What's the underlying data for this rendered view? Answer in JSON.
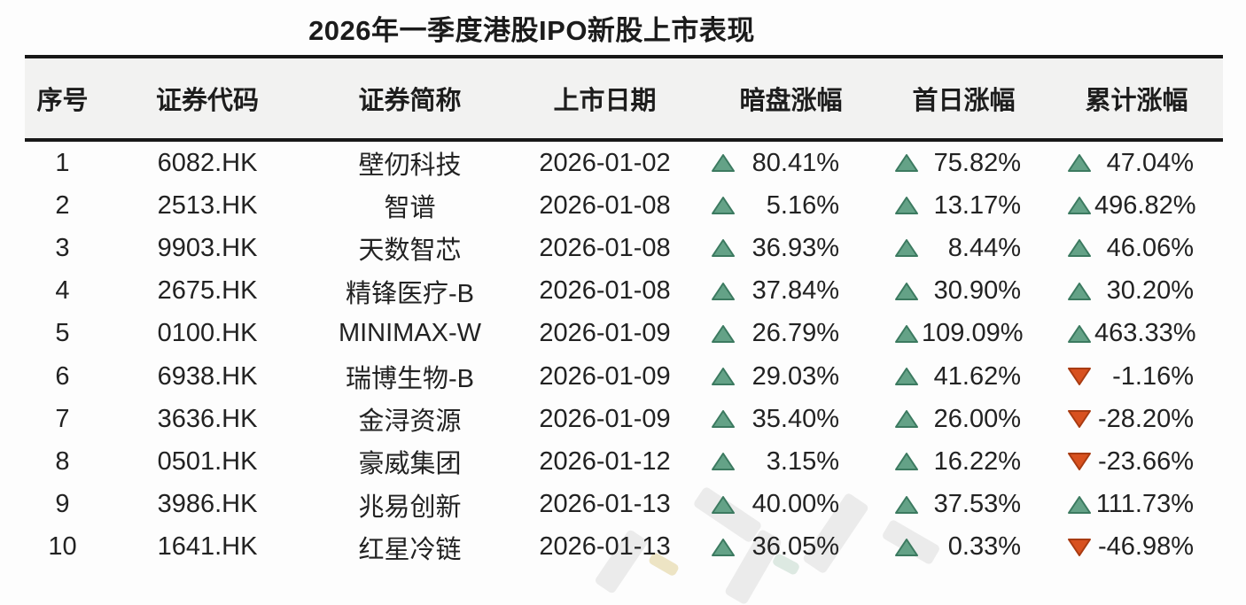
{
  "page_title": "2026年一季度港股IPO新股上市表现",
  "colors": {
    "up_fill": "#64a287",
    "up_stroke": "#3c7a60",
    "down_fill": "#d8511f",
    "down_stroke": "#a83b12",
    "header_bg": "#f2f2f1",
    "rule_line": "#181818",
    "text": "#202020"
  },
  "icons": {
    "up": "triangle-up-icon",
    "down": "triangle-down-icon"
  },
  "chart_data": {
    "type": "table",
    "title": "2026年一季度港股IPO新股上市表现",
    "columns": [
      "序号",
      "证券代码",
      "证券简称",
      "上市日期",
      "暗盘涨幅",
      "首日涨幅",
      "累计涨幅"
    ],
    "rows": [
      [
        "1",
        "6082.HK",
        "壁仞科技",
        "2026-01-02",
        "80.41%",
        "75.82%",
        "47.04%"
      ],
      [
        "2",
        "2513.HK",
        "智谱",
        "2026-01-08",
        "5.16%",
        "13.17%",
        "496.82%"
      ],
      [
        "3",
        "9903.HK",
        "天数智芯",
        "2026-01-08",
        "36.93%",
        "8.44%",
        "46.06%"
      ],
      [
        "4",
        "2675.HK",
        "精锋医疗-B",
        "2026-01-08",
        "37.84%",
        "30.90%",
        "30.20%"
      ],
      [
        "5",
        "0100.HK",
        "MINIMAX-W",
        "2026-01-09",
        "26.79%",
        "109.09%",
        "463.33%"
      ],
      [
        "6",
        "6938.HK",
        "瑞博生物-B",
        "2026-01-09",
        "29.03%",
        "41.62%",
        "-1.16%"
      ],
      [
        "7",
        "3636.HK",
        "金浔资源",
        "2026-01-09",
        "35.40%",
        "26.00%",
        "-28.20%"
      ],
      [
        "8",
        "0501.HK",
        "豪威集团",
        "2026-01-12",
        "3.15%",
        "16.22%",
        "-23.66%"
      ],
      [
        "9",
        "3986.HK",
        "兆易创新",
        "2026-01-13",
        "40.00%",
        "37.53%",
        "111.73%"
      ],
      [
        "10",
        "1641.HK",
        "红星冷链",
        "2026-01-13",
        "36.05%",
        "0.33%",
        "-46.98%"
      ]
    ],
    "layout_hints": {
      "gain_columns_start_index": 4,
      "indicator": "green up-triangle for positive, red down-triangle for negative",
      "header_band": "light gray with heavy black rules above and below"
    }
  }
}
